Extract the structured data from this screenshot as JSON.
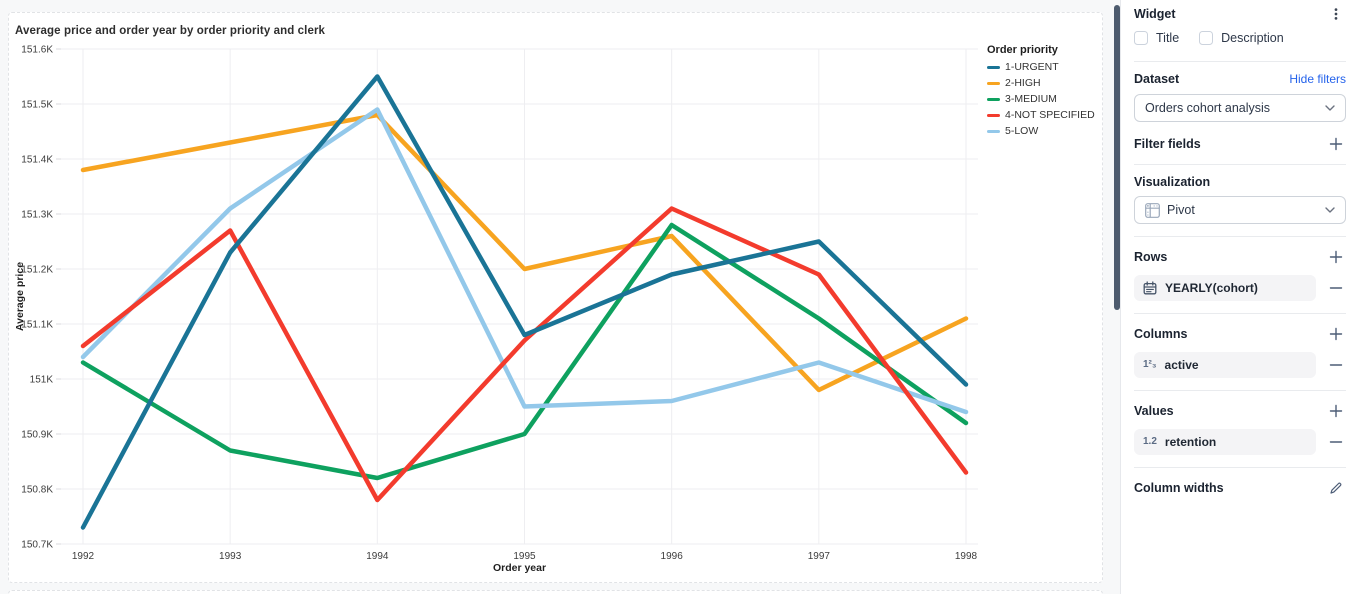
{
  "colors": {
    "link_blue": "#2563eb",
    "panel_icon": "#4d5d77",
    "grid_line": "#eeeef1",
    "axis_text": "#3c3c3c"
  },
  "chart_data": {
    "type": "line",
    "title": "Average price and order year by order priority and clerk",
    "xlabel": "Order year",
    "ylabel": "Average price",
    "legend_title": "Order priority",
    "legend_position": "top-right",
    "grid": true,
    "x": [
      1992,
      1993,
      1994,
      1995,
      1996,
      1997,
      1998
    ],
    "ylim_k": [
      150.7,
      151.6
    ],
    "ytick_values_k": [
      151.6,
      151.5,
      151.4,
      151.3,
      151.2,
      151.1,
      151.0,
      150.9,
      150.8,
      150.7
    ],
    "ytick_labels": [
      "151.6K",
      "151.5K",
      "151.4K",
      "151.3K",
      "151.2K",
      "151.1K",
      "151K",
      "150.9K",
      "150.8K",
      "150.7K"
    ],
    "series": [
      {
        "name": "1-URGENT",
        "color": "#1a7496",
        "values_k": [
          150.73,
          151.23,
          151.55,
          151.08,
          151.19,
          151.25,
          150.99
        ]
      },
      {
        "name": "2-HIGH",
        "color": "#f7a420",
        "values_k": [
          151.38,
          151.43,
          151.48,
          151.2,
          151.26,
          150.98,
          151.11
        ]
      },
      {
        "name": "3-MEDIUM",
        "color": "#0ea15f",
        "values_k": [
          151.03,
          150.87,
          150.82,
          150.9,
          151.28,
          151.11,
          150.92
        ]
      },
      {
        "name": "4-NOT SPECIFIED",
        "color": "#f33b2d",
        "values_k": [
          151.06,
          151.27,
          150.78,
          151.07,
          151.31,
          151.19,
          150.83
        ]
      },
      {
        "name": "5-LOW",
        "color": "#93c8ea",
        "values_k": [
          151.04,
          151.31,
          151.49,
          150.95,
          150.96,
          151.03,
          150.94
        ]
      }
    ]
  },
  "panel": {
    "widget": {
      "title": "Widget",
      "title_checkbox": "Title",
      "description_checkbox": "Description"
    },
    "dataset": {
      "label": "Dataset",
      "hide_filters_link": "Hide filters",
      "selected": "Orders cohort analysis"
    },
    "filter_fields": {
      "label": "Filter fields"
    },
    "visualization": {
      "label": "Visualization",
      "selected": "Pivot"
    },
    "rows": {
      "label": "Rows",
      "field": "YEARLY(cohort)",
      "field_icon": "calendar-icon"
    },
    "columns": {
      "label": "Columns",
      "field": "active",
      "field_icon_text": "1²₃"
    },
    "values": {
      "label": "Values",
      "field": "retention",
      "field_icon_text": "1.2"
    },
    "column_widths": {
      "label": "Column widths"
    }
  }
}
